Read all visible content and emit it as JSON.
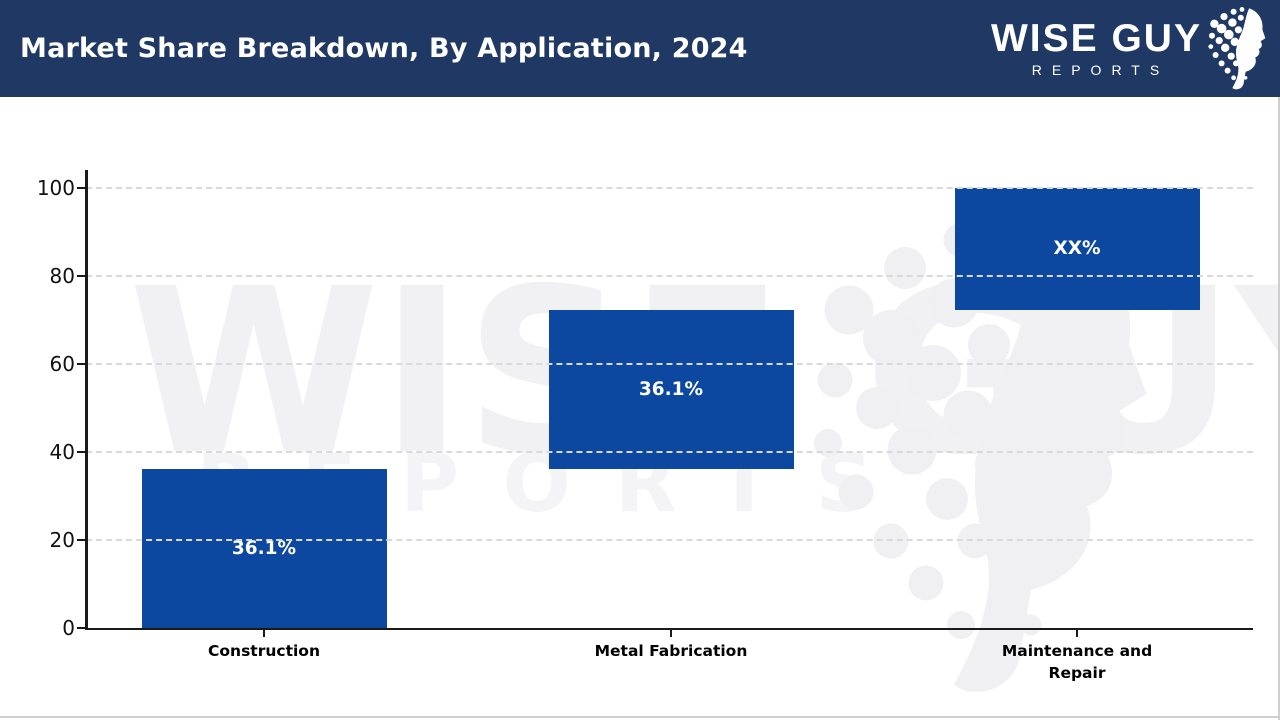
{
  "header": {
    "title": "Market Share Breakdown, By Application, 2024",
    "bg_color": "#1f3864",
    "logo": {
      "brand_top": "WISE GUY",
      "brand_bottom": "REPORTS"
    }
  },
  "watermark": {
    "text_top": "WISE GUY",
    "text_bottom": "REPORTS"
  },
  "chart_data": {
    "type": "bar",
    "subtype": "floating-segment-bars",
    "title": "Market Share Breakdown, By Application, 2024",
    "categories": [
      "Construction",
      "Metal Fabrication",
      "Maintenance and Repair"
    ],
    "bars": [
      {
        "category": "Construction",
        "start": 0,
        "end": 36.1,
        "value_label": "36.1%"
      },
      {
        "category": "Metal Fabrication",
        "start": 36.1,
        "end": 72.2,
        "value_label": "36.1%"
      },
      {
        "category": "Maintenance and Repair",
        "start": 72.2,
        "end": 100,
        "value_label": "XX%"
      }
    ],
    "yticks": [
      0,
      20,
      40,
      60,
      80,
      100
    ],
    "ylim": [
      0,
      104
    ],
    "xlabel": "",
    "ylabel": "",
    "grid": "horizontal-dashed",
    "legend": "none",
    "bar_color": "#0c47a0",
    "bar_label_color": "#ffffff",
    "axis_color": "#1a1a1a",
    "grid_color": "#d9d9d9",
    "tick_label_color": "#111111"
  }
}
